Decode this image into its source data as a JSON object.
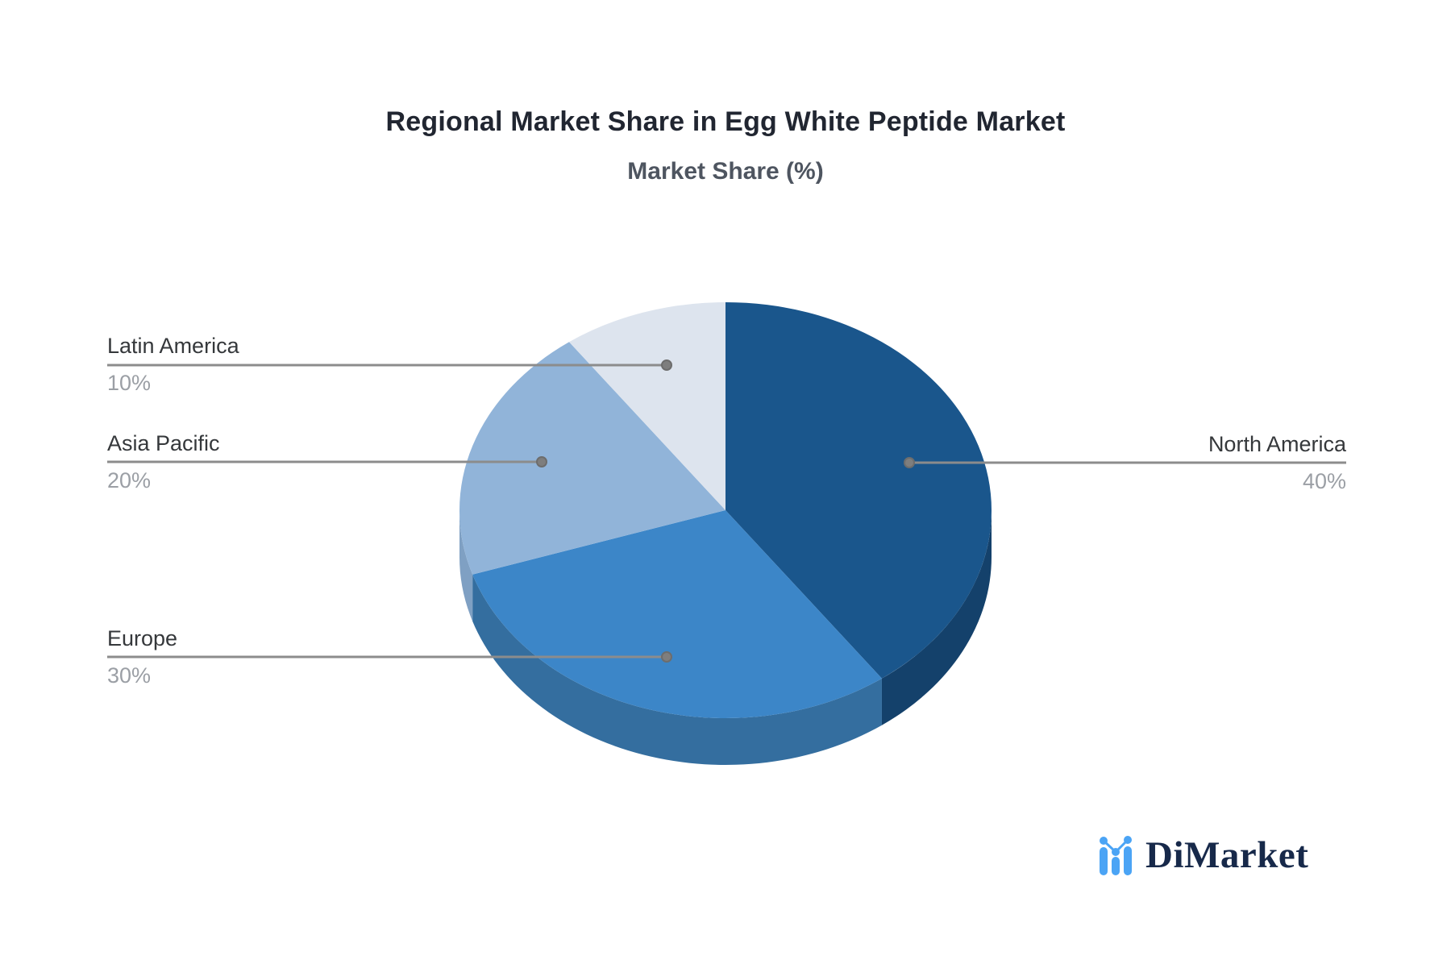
{
  "header": {
    "title": "Regional Market Share in Egg White Peptide Market",
    "subtitle": "Market Share (%)"
  },
  "chart_data": {
    "type": "pie",
    "style": "3d",
    "title": "Regional Market Share in Egg White Peptide Market",
    "subtitle": "Market Share (%)",
    "unit": "%",
    "direction": "clockwise",
    "start_angle_deg": 0,
    "legend_position": "none",
    "total": 100,
    "slices": [
      {
        "label": "North America",
        "value": 40,
        "pct_label": "40%",
        "color": "#1A568C",
        "side_color": "#14416B",
        "label_side": "right"
      },
      {
        "label": "Europe",
        "value": 30,
        "pct_label": "30%",
        "color": "#3C86C8",
        "side_color": "#346E9F",
        "label_side": "left"
      },
      {
        "label": "Asia Pacific",
        "value": 20,
        "pct_label": "20%",
        "color": "#91B4D9",
        "side_color": "#7FA0C3",
        "label_side": "left"
      },
      {
        "label": "Latin America",
        "value": 10,
        "pct_label": "10%",
        "color": "#DDE4EE",
        "side_color": "#C2CBDA",
        "label_side": "left"
      }
    ],
    "label_color": "#35383b",
    "pct_color": "#9b9fa5",
    "leader_line_color": "#8c8c8c",
    "leader_dot_color": "#7e7e7e"
  },
  "branding": {
    "logo_text": "DiMarket",
    "logo_text_color": "#17294a",
    "logo_icon": "bar-line-chart-icon",
    "logo_icon_color": "#4BA4F5"
  }
}
